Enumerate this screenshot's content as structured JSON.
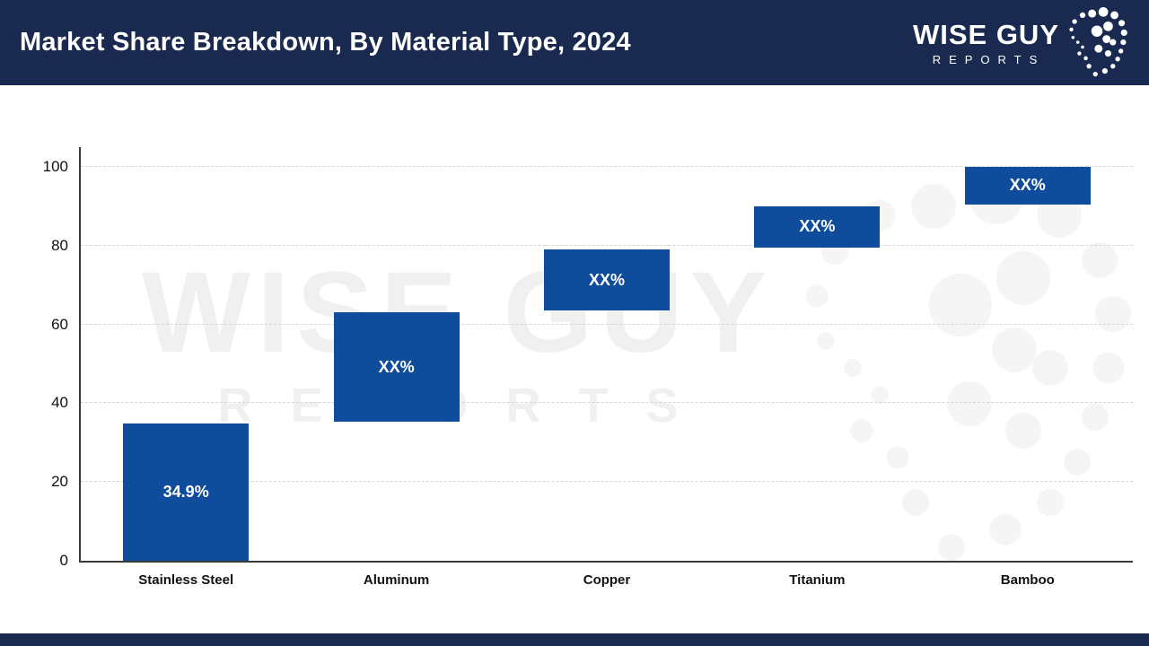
{
  "header": {
    "title": "Market Share Breakdown, By Material Type, 2024",
    "logo_line1": "WISE GUY",
    "logo_line2": "REPORTS"
  },
  "watermark": {
    "line1": "WISE GUY",
    "line2": "REPORTS"
  },
  "colors": {
    "header_bg": "#1a2950",
    "footer_bg": "#1a2950",
    "bar": "#104c9c",
    "bar_label": "#ffffff",
    "gridline": "#d6d6d6",
    "watermark": "#f0f0f1"
  },
  "chart_data": {
    "type": "bar",
    "subtype": "waterfall",
    "title": "Market Share Breakdown, By Material Type, 2024",
    "xlabel": "",
    "ylabel": "",
    "categories": [
      "Stainless Steel",
      "Aluminum",
      "Copper",
      "Titanium",
      "Bamboo"
    ],
    "segments": [
      {
        "category": "Stainless Steel",
        "start": 0,
        "end": 34.9,
        "label": "34.9%"
      },
      {
        "category": "Aluminum",
        "start": 35.3,
        "end": 63,
        "label": "XX%"
      },
      {
        "category": "Copper",
        "start": 63.5,
        "end": 79,
        "label": "XX%"
      },
      {
        "category": "Titanium",
        "start": 79.5,
        "end": 90,
        "label": "XX%"
      },
      {
        "category": "Bamboo",
        "start": 90.5,
        "end": 100,
        "label": "XX%"
      }
    ],
    "yticks": [
      0,
      20,
      40,
      60,
      80,
      100
    ],
    "ylim": [
      0,
      105
    ],
    "grid": "dashed-horizontal",
    "legend": "none",
    "bar_color": "#104c9c",
    "label_color": "#ffffff"
  }
}
